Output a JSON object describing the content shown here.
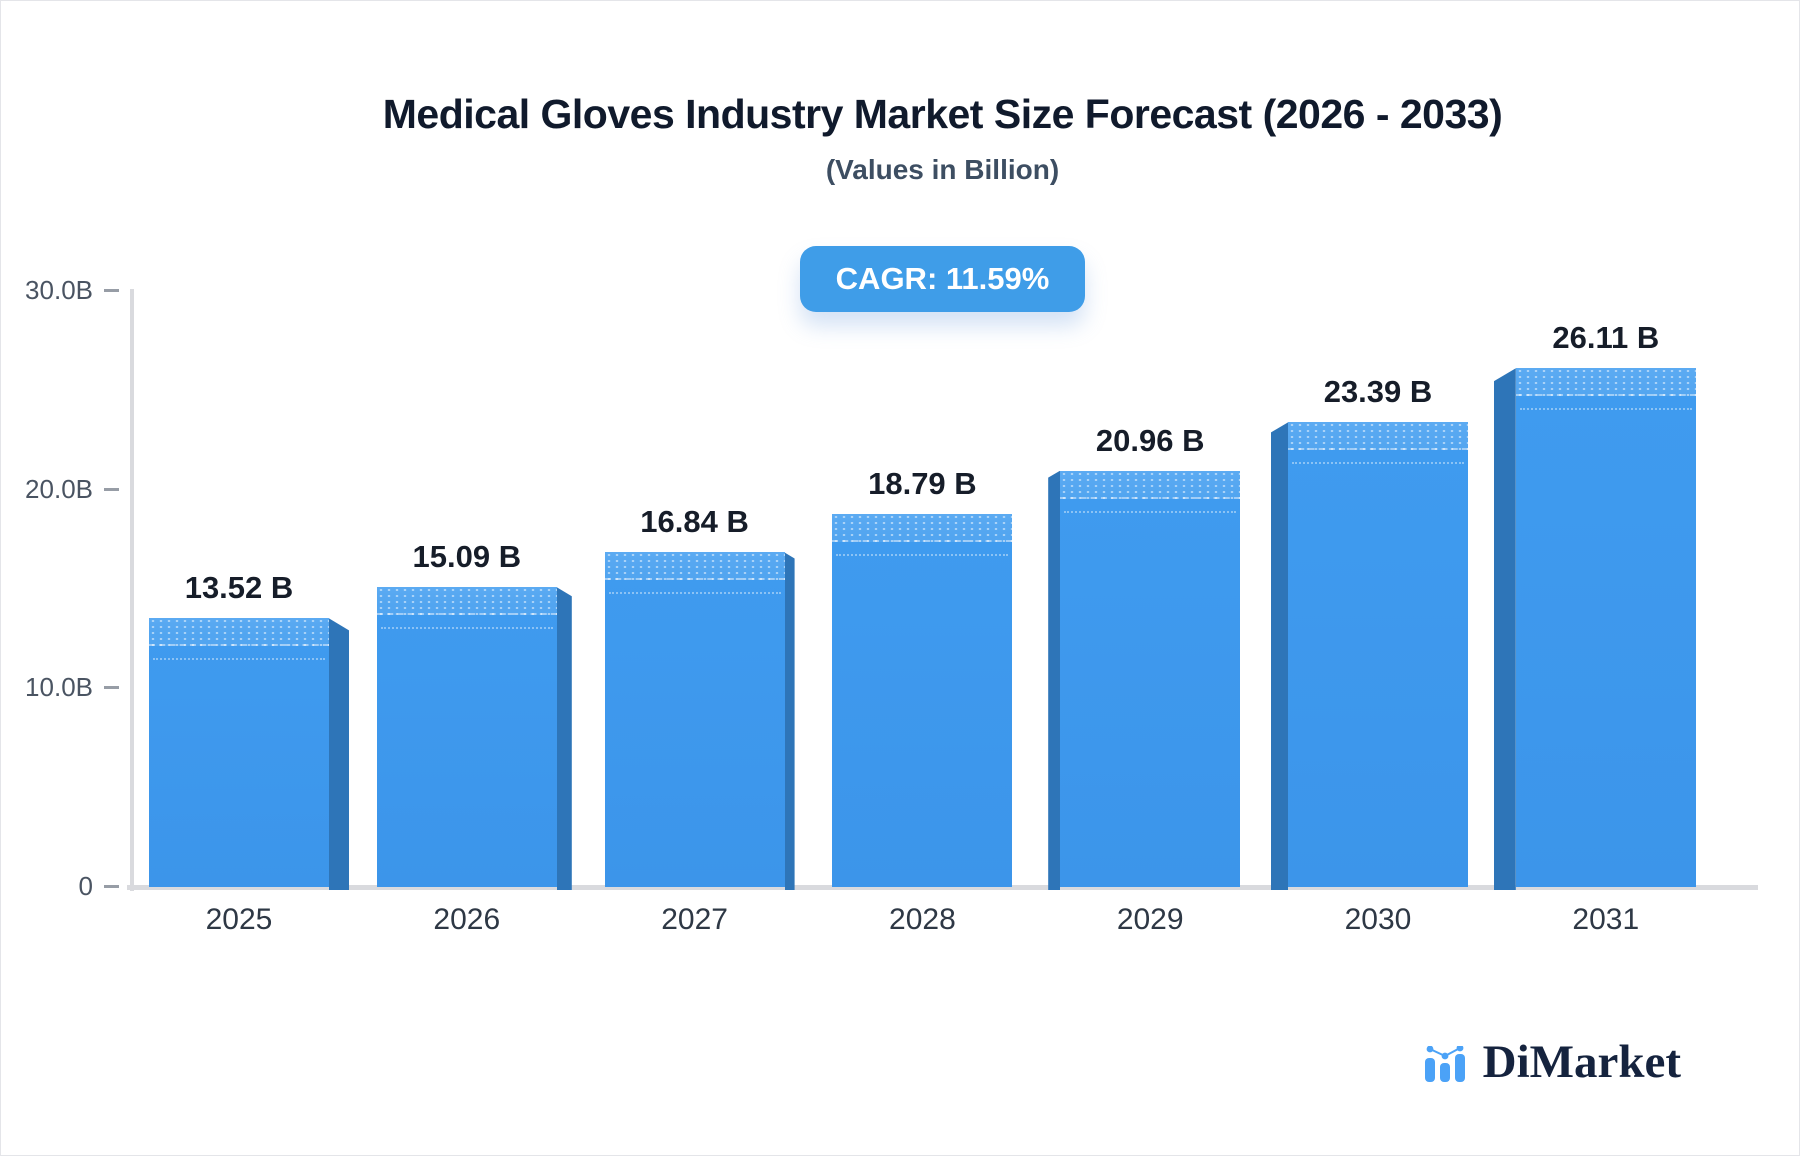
{
  "chart_data": {
    "type": "bar",
    "title": "Medical Gloves Industry Market Size Forecast (2026 - 2033)",
    "subtitle": "(Values in Billion)",
    "categories": [
      "2025",
      "2026",
      "2027",
      "2028",
      "2029",
      "2030",
      "2031"
    ],
    "values": [
      13.52,
      15.09,
      16.84,
      18.79,
      20.96,
      23.39,
      26.11
    ],
    "value_labels": [
      "13.52 B",
      "15.09 B",
      "16.84 B",
      "18.79 B",
      "20.96 B",
      "23.39 B",
      "26.11 B"
    ],
    "unit": "Billion",
    "ylim": [
      0,
      30
    ],
    "y_ticks": [
      {
        "label": "30.0B",
        "value": 30
      },
      {
        "label": "20.0B",
        "value": 20
      },
      {
        "label": "10.0B",
        "value": 10
      },
      {
        "label": "0",
        "value": 0
      }
    ],
    "grid": false,
    "legend": false
  },
  "badge": {
    "text": "CAGR: 11.59%"
  },
  "colors": {
    "bar_face": "#3F9BEF",
    "bar_side": "#2E75B8",
    "badge_bg": "#3F9DE8",
    "axis": "#D9DADE",
    "logo_blue": "#4BA2F7",
    "logo_text": "#15233E"
  },
  "logo": {
    "text": "DiMarket"
  }
}
